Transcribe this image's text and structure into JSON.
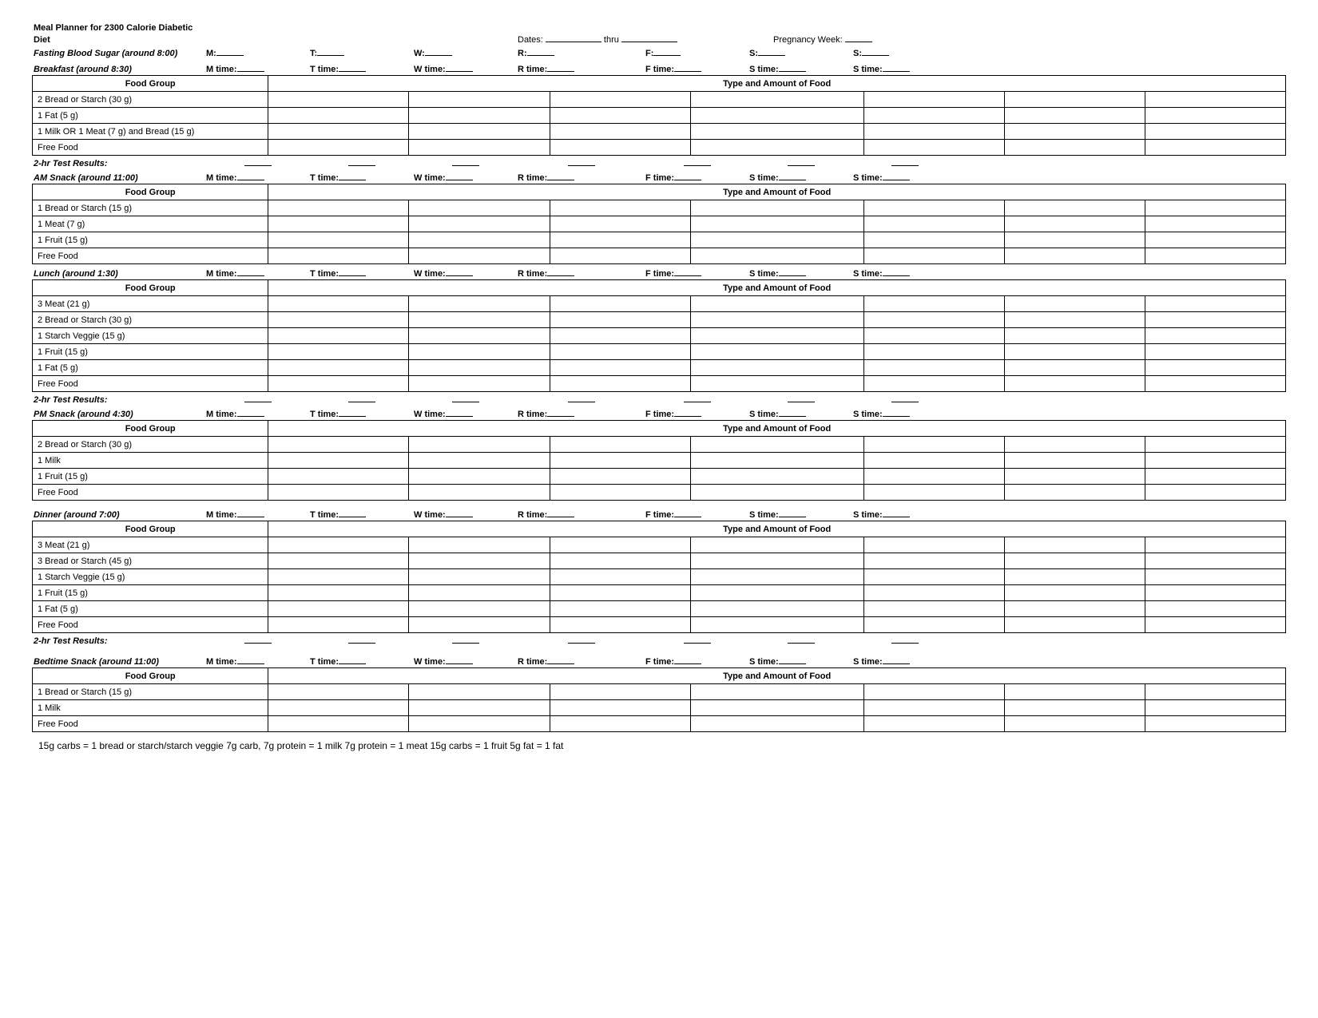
{
  "header": {
    "title": "Meal Planner for 2300 Calorie Diabetic Diet",
    "fasting_label": "Fasting Blood Sugar (around 8:00)",
    "dates_label": "Dates:",
    "thru_label": "thru",
    "preg_label": "Pregnancy Week:",
    "day_labels": [
      "M:",
      "T:",
      "W:",
      "R:",
      "F:",
      "S:",
      "S:"
    ]
  },
  "columns": {
    "food_group": "Food Group",
    "amount_header": "Type and Amount of Food"
  },
  "time_prefixes": [
    "M time:",
    "T time:",
    "W time:",
    "R time:",
    "F time:",
    "S time:",
    "S time:"
  ],
  "test_results_label": "2-hr Test Results:",
  "meals": [
    {
      "key": "breakfast",
      "title": "Breakfast (around 8:30)",
      "items": [
        "2 Bread or Starch (30 g)",
        "1 Fat (5 g)",
        "1 Milk OR 1 Meat (7 g) and Bread (15 g)",
        "Free Food"
      ],
      "test_after": true
    },
    {
      "key": "am_snack",
      "title": "AM Snack (around 11:00)",
      "items": [
        "1 Bread or Starch (15 g)",
        "1 Meat (7 g)",
        "1 Fruit  (15 g)",
        "Free Food"
      ],
      "test_after": false
    },
    {
      "key": "lunch",
      "title": "Lunch (around 1:30)",
      "items": [
        "3 Meat (21 g)",
        "2 Bread or Starch (30 g)",
        "1 Starch Veggie (15 g)",
        "1 Fruit (15 g)",
        "1 Fat (5 g)",
        "Free Food"
      ],
      "test_after": true
    },
    {
      "key": "pm_snack",
      "title": "PM Snack (around 4:30)",
      "items": [
        "2 Bread or Starch (30 g)",
        "1 Milk",
        "1 Fruit  (15 g)",
        "Free Food"
      ],
      "test_after": false
    },
    {
      "key": "dinner",
      "title": "Dinner (around 7:00)",
      "items": [
        "3 Meat (21 g)",
        "3 Bread or Starch (45 g)",
        "1 Starch Veggie (15 g)",
        "1 Fruit (15 g)",
        "1 Fat (5 g)",
        "Free Food"
      ],
      "test_after": true
    },
    {
      "key": "bedtime_snack",
      "title": "Bedtime Snack (around 11:00)",
      "items": [
        "1 Bread or Starch (15 g)",
        "1 Milk",
        "Free Food"
      ],
      "test_after": false
    }
  ],
  "footnote": "15g carbs = 1 bread or starch/starch veggie  7g carb, 7g protein = 1 milk  7g protein = 1 meat  15g carbs = 1 fruit  5g fat = 1 fat"
}
